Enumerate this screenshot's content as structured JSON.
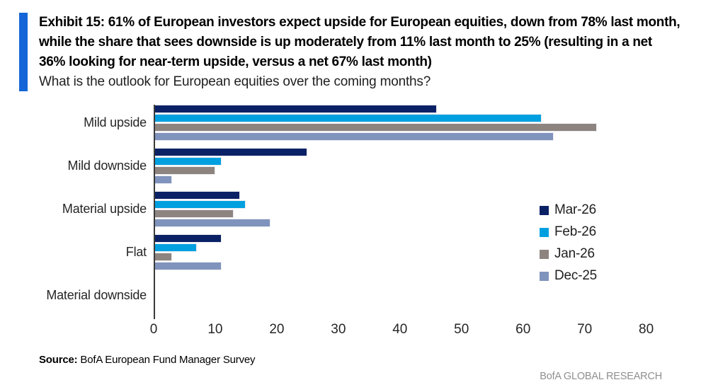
{
  "header": {
    "exhibit_title": "Exhibit 15: 61% of European investors expect upside for European equities, down from 78% last month, while the share that sees downside is up moderately from 11% last month to 25% (resulting in a net 36% looking for near-term upside, versus a net 67% last month)",
    "subtitle": "What is the outlook for European equities over the coming months?",
    "accent_color": "#1565d8"
  },
  "chart_data": {
    "type": "bar",
    "orientation": "horizontal",
    "title": "What is the outlook for European equities over the coming months?",
    "categories": [
      "Mild upside",
      "Mild downside",
      "Material upside",
      "Flat",
      "Material downside"
    ],
    "series": [
      {
        "name": "Mar-26",
        "color": "#0a2166",
        "values": [
          46,
          25,
          14,
          11,
          0
        ]
      },
      {
        "name": "Feb-26",
        "color": "#00a0e0",
        "values": [
          63,
          11,
          15,
          7,
          0
        ]
      },
      {
        "name": "Jan-26",
        "color": "#8d8480",
        "values": [
          72,
          10,
          13,
          3,
          0
        ]
      },
      {
        "name": "Dec-25",
        "color": "#8093bd",
        "values": [
          65,
          3,
          19,
          11,
          0
        ]
      }
    ],
    "xlabel": "",
    "ylabel": "",
    "xlim": [
      0,
      80
    ],
    "x_ticks": [
      0,
      10,
      20,
      30,
      40,
      50,
      60,
      70,
      80
    ],
    "grid": false,
    "legend_position": "right-middle"
  },
  "footer": {
    "source_label": "Source:",
    "source_text": " BofA European Fund Manager Survey",
    "brand": "BofA GLOBAL RESEARCH"
  }
}
